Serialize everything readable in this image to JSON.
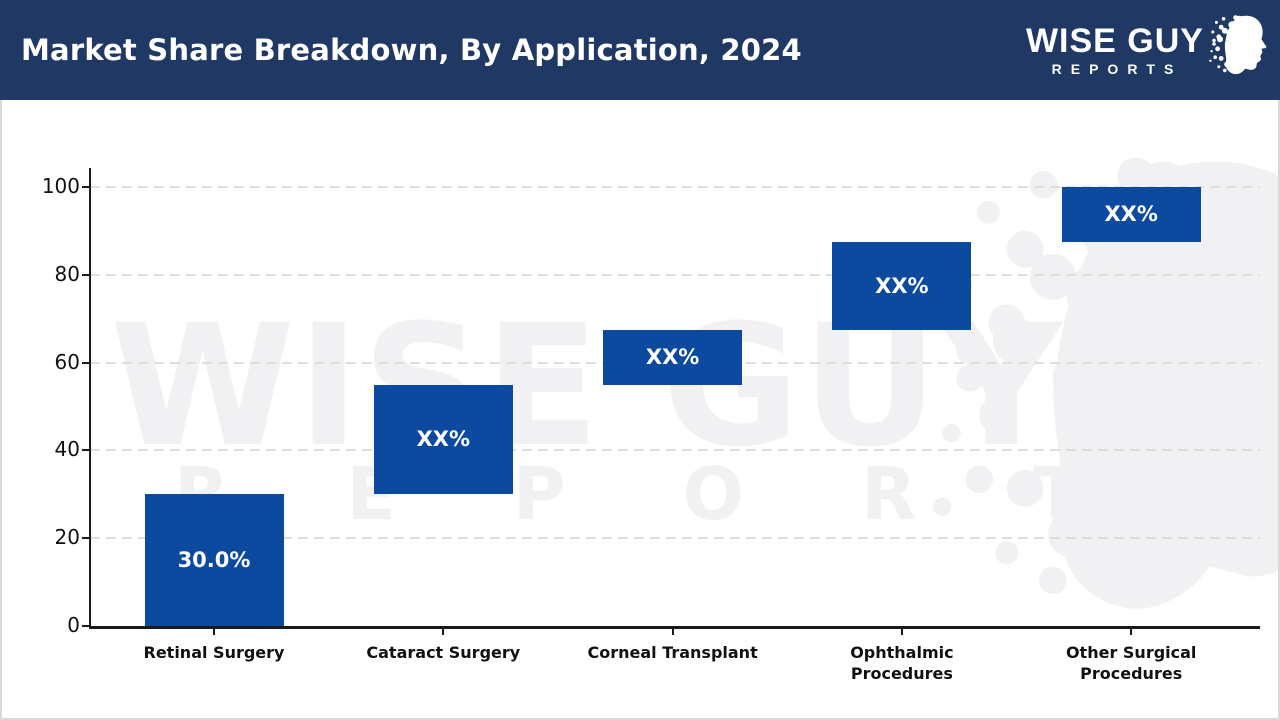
{
  "header": {
    "title": "Market Share Breakdown, By Application, 2024",
    "logo": {
      "line1": "WISE GUY",
      "line2": "REPORTS"
    }
  },
  "watermark": {
    "line1": "WISE GUY",
    "line2": "R E P O R T S"
  },
  "chart_data": {
    "type": "bar",
    "subtype": "waterfall",
    "title": "Market Share Breakdown, By Application, 2024",
    "categories": [
      "Retinal Surgery",
      "Cataract Surgery",
      "Corneal Transplant",
      "Ophthalmic Procedures",
      "Other Surgical Procedures"
    ],
    "segments": [
      {
        "category": "Retinal Surgery",
        "start": 0,
        "end": 30,
        "label": "30.0%"
      },
      {
        "category": "Cataract Surgery",
        "start": 30,
        "end": 55,
        "label": "XX%"
      },
      {
        "category": "Corneal Transplant",
        "start": 55,
        "end": 67.5,
        "label": "XX%"
      },
      {
        "category": "Ophthalmic Procedures",
        "start": 67.5,
        "end": 87.5,
        "label": "XX%"
      },
      {
        "category": "Other Surgical Procedures",
        "start": 87.5,
        "end": 100,
        "label": "XX%"
      }
    ],
    "yticks": [
      0,
      20,
      40,
      60,
      80,
      100
    ],
    "ylim": [
      0,
      104
    ],
    "xlabel": "",
    "ylabel": "",
    "grid": "horizontal-dashed",
    "legend": "none"
  },
  "colors": {
    "header_bg": "#1f3864",
    "header_text": "#ffffff",
    "bar": "#0b4a9e",
    "bar_label": "#ffffff",
    "axis": "#1a1a1a",
    "grid": "#dedede",
    "watermark": "#f1f1f3",
    "frame": "#d9d9d9"
  }
}
